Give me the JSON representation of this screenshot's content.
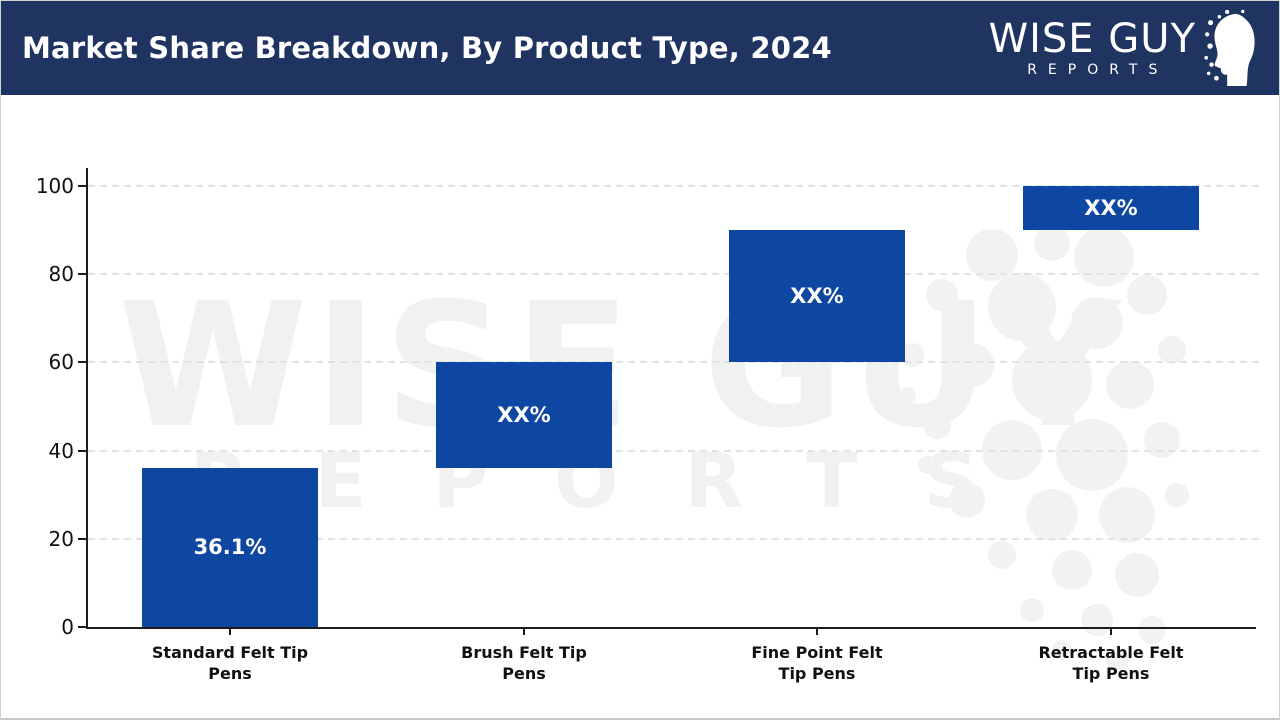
{
  "header": {
    "title": "Market Share Breakdown, By Product Type, 2024",
    "logo": {
      "line1": "WISE GUY",
      "line2": "REPORTS"
    }
  },
  "watermark": {
    "line1": "WISE GUY",
    "line2": "REPORTS"
  },
  "chart_data": {
    "type": "bar",
    "subtype": "waterfall",
    "title": "Market Share Breakdown, By Product Type, 2024",
    "categories": [
      "Standard Felt Tip Pens",
      "Brush Felt Tip Pens",
      "Fine Point Felt Tip Pens",
      "Retractable Felt Tip Pens"
    ],
    "category_label_lines": [
      [
        "Standard Felt Tip",
        "Pens"
      ],
      [
        "Brush Felt Tip",
        "Pens"
      ],
      [
        "Fine Point Felt",
        "Tip Pens"
      ],
      [
        "Retractable Felt",
        "Tip Pens"
      ]
    ],
    "values": [
      36.1,
      23.9,
      30.0,
      10.0
    ],
    "cumulative_start": [
      0,
      36.1,
      60,
      90
    ],
    "cumulative_end": [
      36.1,
      60,
      90,
      100
    ],
    "bar_labels": [
      "36.1%",
      "XX%",
      "XX%",
      "XX%"
    ],
    "ylim": [
      0,
      100
    ],
    "yticks": [
      0,
      20,
      40,
      60,
      80,
      100
    ],
    "gridline_ticks": [
      20,
      40,
      60,
      80,
      100
    ],
    "bar_color": "#0d47a1",
    "bar_label_color": "#ffffff",
    "grid": {
      "horizontal": true,
      "style": "dashed",
      "color": "#e2e2e2"
    },
    "axis_color": "#1c1c1c",
    "header_color": "#1f3460",
    "watermark_color": "#f1f1f1"
  }
}
